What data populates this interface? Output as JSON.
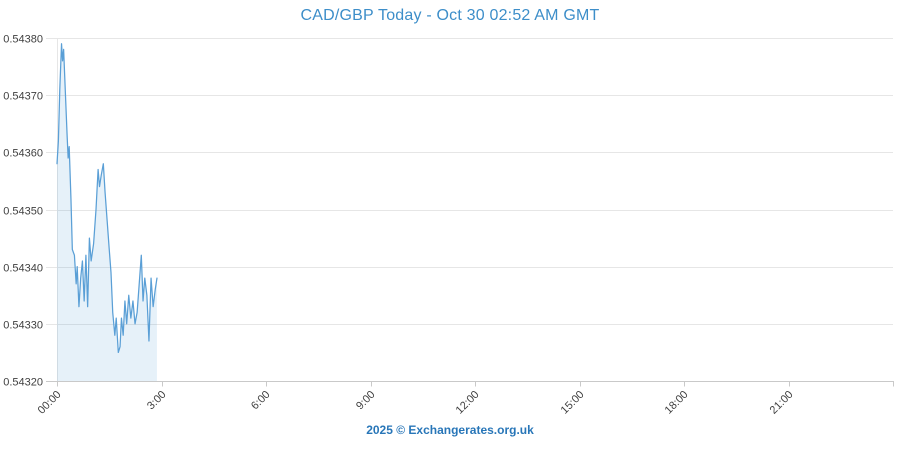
{
  "title": "CAD/GBP Today - Oct 30 02:52 AM GMT",
  "footer": {
    "text": "2025 © Exchangerates.org.uk"
  },
  "colors": {
    "title": "#3d8ec9",
    "footer_link": "#2876b8",
    "line": "#5a9fd6",
    "fill": "rgba(90,159,214,0.15)",
    "grid": "#e6e6e6",
    "axis": "#c9c9c9",
    "label": "#3f3f3f"
  },
  "chart_data": {
    "type": "area",
    "title": "CAD/GBP Today - Oct 30 02:52 AM GMT",
    "xlabel": "",
    "ylabel": "",
    "x_unit": "time of day (GMT)",
    "xlim": [
      0,
      24
    ],
    "ylim": [
      0.5432,
      0.5438
    ],
    "grid": "horizontal-only",
    "legend": "none",
    "x_ticks": [
      {
        "value": 0,
        "label": "00:00"
      },
      {
        "value": 3,
        "label": "3:00"
      },
      {
        "value": 6,
        "label": "6:00"
      },
      {
        "value": 9,
        "label": "9:00"
      },
      {
        "value": 12,
        "label": "12:00"
      },
      {
        "value": 15,
        "label": "15:00"
      },
      {
        "value": 18,
        "label": "18:00"
      },
      {
        "value": 21,
        "label": "21:00"
      },
      {
        "value": 24,
        "label": ""
      }
    ],
    "y_ticks": [
      {
        "value": 0.5432,
        "label": "0.54320"
      },
      {
        "value": 0.5433,
        "label": "0.54330"
      },
      {
        "value": 0.5434,
        "label": "0.54340"
      },
      {
        "value": 0.5435,
        "label": "0.54350"
      },
      {
        "value": 0.5436,
        "label": "0.54360"
      },
      {
        "value": 0.5437,
        "label": "0.54370"
      },
      {
        "value": 0.5438,
        "label": "0.54380"
      }
    ],
    "series": [
      {
        "name": "CAD/GBP",
        "points": [
          [
            0.0,
            0.54358
          ],
          [
            0.04,
            0.54362
          ],
          [
            0.08,
            0.54371
          ],
          [
            0.13,
            0.54379
          ],
          [
            0.16,
            0.54376
          ],
          [
            0.19,
            0.54378
          ],
          [
            0.25,
            0.54369
          ],
          [
            0.29,
            0.54363
          ],
          [
            0.32,
            0.54359
          ],
          [
            0.35,
            0.54361
          ],
          [
            0.4,
            0.54352
          ],
          [
            0.44,
            0.54343
          ],
          [
            0.5,
            0.54342
          ],
          [
            0.55,
            0.54337
          ],
          [
            0.58,
            0.5434
          ],
          [
            0.63,
            0.54333
          ],
          [
            0.68,
            0.54338
          ],
          [
            0.73,
            0.54341
          ],
          [
            0.78,
            0.54334
          ],
          [
            0.83,
            0.54342
          ],
          [
            0.88,
            0.54333
          ],
          [
            0.93,
            0.54345
          ],
          [
            0.98,
            0.54341
          ],
          [
            1.05,
            0.54344
          ],
          [
            1.12,
            0.5435
          ],
          [
            1.18,
            0.54357
          ],
          [
            1.22,
            0.54354
          ],
          [
            1.27,
            0.54356
          ],
          [
            1.33,
            0.54358
          ],
          [
            1.38,
            0.54353
          ],
          [
            1.44,
            0.54348
          ],
          [
            1.5,
            0.54343
          ],
          [
            1.55,
            0.54339
          ],
          [
            1.6,
            0.54332
          ],
          [
            1.66,
            0.54328
          ],
          [
            1.7,
            0.54331
          ],
          [
            1.76,
            0.54325
          ],
          [
            1.81,
            0.54326
          ],
          [
            1.85,
            0.54331
          ],
          [
            1.9,
            0.54328
          ],
          [
            1.95,
            0.54334
          ],
          [
            2.0,
            0.5433
          ],
          [
            2.06,
            0.54335
          ],
          [
            2.12,
            0.54331
          ],
          [
            2.18,
            0.54334
          ],
          [
            2.24,
            0.5433
          ],
          [
            2.3,
            0.54332
          ],
          [
            2.42,
            0.54342
          ],
          [
            2.47,
            0.54334
          ],
          [
            2.52,
            0.54338
          ],
          [
            2.58,
            0.54335
          ],
          [
            2.64,
            0.54327
          ],
          [
            2.7,
            0.54338
          ],
          [
            2.76,
            0.54333
          ],
          [
            2.82,
            0.54336
          ],
          [
            2.87,
            0.54338
          ]
        ]
      }
    ]
  }
}
